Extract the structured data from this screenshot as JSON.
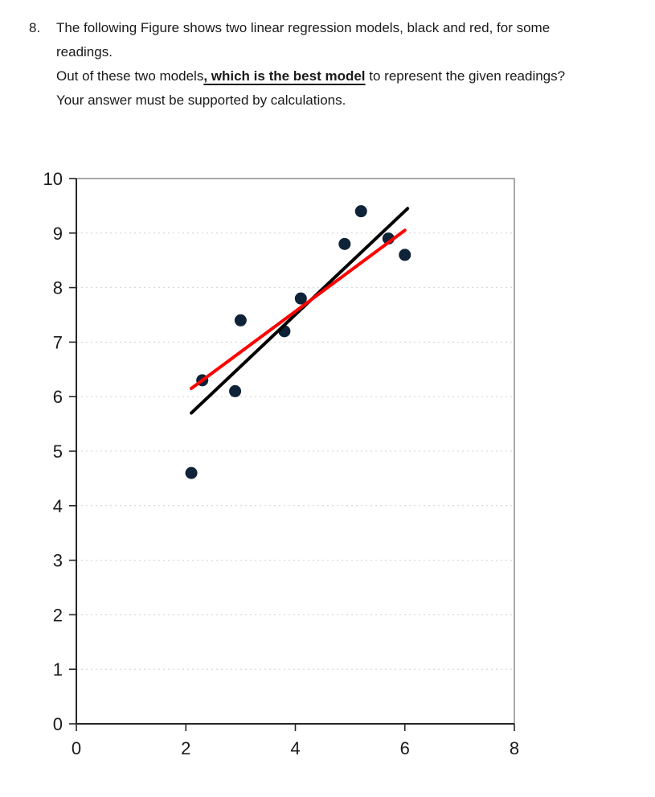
{
  "question": {
    "number": "8.",
    "lines": [
      "The following Figure shows two linear regression models, black and red, for some",
      "readings."
    ],
    "prompt_prefix": "Out of these two models",
    "prompt_emphasis": ", which is the best model",
    "prompt_suffix": " to represent the given readings?",
    "closing": "Your answer must be supported by calculations."
  },
  "chart_data": {
    "type": "scatter",
    "title": "",
    "xlabel": "",
    "ylabel": "",
    "xlim": [
      0,
      8
    ],
    "ylim": [
      0,
      10
    ],
    "xticks": [
      0,
      2,
      4,
      6,
      8
    ],
    "yticks": [
      0,
      1,
      2,
      3,
      4,
      5,
      6,
      7,
      8,
      9,
      10
    ],
    "grid": "horizontal-dotted",
    "legend": "none",
    "point_color": "#0e2238",
    "point_radius": 7.5,
    "points": [
      {
        "x": 2.1,
        "y": 4.6
      },
      {
        "x": 2.3,
        "y": 6.3
      },
      {
        "x": 2.9,
        "y": 6.1
      },
      {
        "x": 3.0,
        "y": 7.4
      },
      {
        "x": 3.8,
        "y": 7.2
      },
      {
        "x": 4.1,
        "y": 7.8
      },
      {
        "x": 4.9,
        "y": 8.8
      },
      {
        "x": 5.2,
        "y": 9.4
      },
      {
        "x": 5.7,
        "y": 8.9
      },
      {
        "x": 6.0,
        "y": 8.6
      }
    ],
    "series": [
      {
        "name": "black-regression-line",
        "type": "line",
        "color": "#000000",
        "width": 4,
        "start": {
          "x": 2.1,
          "y": 5.7
        },
        "end": {
          "x": 6.05,
          "y": 9.45
        }
      },
      {
        "name": "red-regression-line",
        "type": "line",
        "color": "#ff0000",
        "width": 4,
        "start": {
          "x": 2.1,
          "y": 6.15
        },
        "end": {
          "x": 6.0,
          "y": 9.05
        }
      }
    ],
    "axis_color": "#262626",
    "box_color": "#6e6e6e",
    "grid_color": "#d0d0d0",
    "tick_label_color": "#1a1a1a",
    "tick_label_size": 22
  }
}
